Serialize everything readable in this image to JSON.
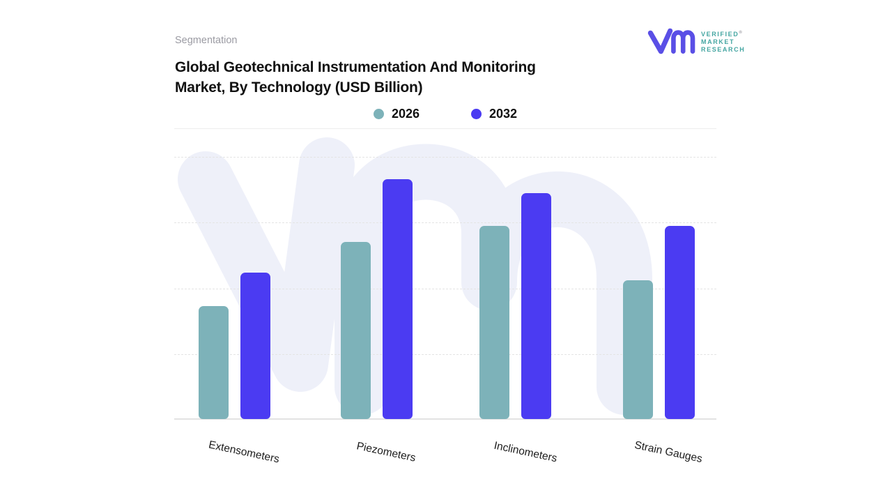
{
  "header": {
    "eyebrow": "Segmentation",
    "title": "Global Geotechnical Instrumentation And Monitoring\nMarket, By Technology (USD Billion)"
  },
  "logo": {
    "mark": "vm-monogram",
    "line1": "VERIFIED",
    "registered_mark": "®",
    "line2": "MARKET",
    "line3": "RESEARCH",
    "mark_color": "#5a4fe6",
    "text_color": "#45a6a2"
  },
  "legend": {
    "items": [
      {
        "label": "2026",
        "color": "#7db2b9"
      },
      {
        "label": "2032",
        "color": "#4b3bf2"
      }
    ]
  },
  "chart_data": {
    "type": "bar",
    "title": "Global Geotechnical Instrumentation And Monitoring Market, By Technology (USD Billion)",
    "categories": [
      "Extensometers",
      "Piezometers",
      "Inclinometers",
      "Strain Gauges"
    ],
    "series": [
      {
        "name": "2026",
        "color": "#7db2b9",
        "values": [
          1.72,
          2.69,
          2.94,
          2.11
        ]
      },
      {
        "name": "2032",
        "color": "#4b3bf2",
        "values": [
          2.23,
          3.65,
          3.44,
          2.94
        ]
      }
    ],
    "xlabel": "",
    "ylabel": "",
    "y_axis_labels_visible": false,
    "ylim": [
      0,
      4
    ],
    "gridline_step": 1,
    "gridlines": "horizontal-dashed",
    "legend_position": "top-center",
    "watermark": "vmr-logo"
  },
  "colors": {
    "background": "#ffffff",
    "grid": "#e4e4e4",
    "axis_line": "#e3e3e3",
    "divider": "#ededed",
    "watermark": "#eef0f9",
    "title_text": "#111111",
    "eyebrow_text": "#9b9ba3",
    "label_text": "#1c1c1c"
  }
}
